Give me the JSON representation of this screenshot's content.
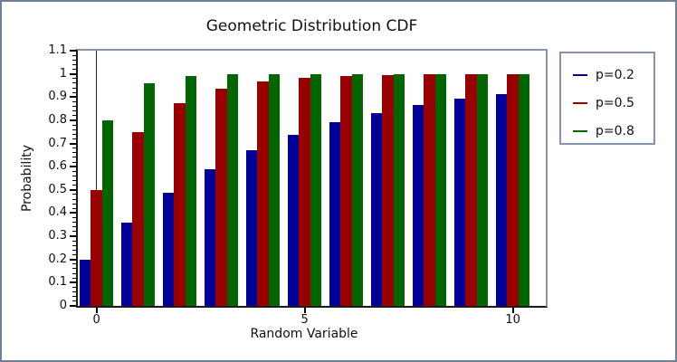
{
  "window": {
    "frame_color": "#6f8096",
    "background": "#ffffff"
  },
  "chart_data": {
    "type": "bar",
    "title": "Geometric Distribution CDF",
    "xlabel": "Random Variable",
    "ylabel": "Probability",
    "grid": false,
    "legend_position": "outside-upper-right",
    "ylim": [
      0,
      1.1
    ],
    "xlim": [
      -0.45,
      10.8
    ],
    "x": [
      0,
      1,
      2,
      3,
      4,
      5,
      6,
      7,
      8,
      9,
      10
    ],
    "series": [
      {
        "name": "p=0.2",
        "color": "#000099",
        "values": [
          0.2,
          0.36,
          0.488,
          0.5904,
          0.67232,
          0.737856,
          0.790285,
          0.832228,
          0.865782,
          0.892626,
          0.914101
        ]
      },
      {
        "name": "p=0.5",
        "color": "#990000",
        "values": [
          0.5,
          0.75,
          0.875,
          0.9375,
          0.96875,
          0.984375,
          0.992188,
          0.996094,
          0.998047,
          0.999023,
          0.999512
        ]
      },
      {
        "name": "p=0.8",
        "color": "#006600",
        "values": [
          0.8,
          0.96,
          0.992,
          0.9984,
          0.99968,
          0.999936,
          0.999987,
          0.999997,
          0.999999,
          1.0,
          1.0
        ]
      }
    ],
    "y_ticks": {
      "values": [
        0,
        0.1,
        0.2,
        0.3,
        0.4,
        0.5,
        0.6,
        0.7,
        0.8,
        0.9,
        1.0,
        1.1
      ],
      "labels": [
        "0",
        "0.1",
        "0.2",
        "0.3",
        "0.4",
        "0.5",
        "0.6",
        "0.7",
        "0.8",
        "0.9",
        "1",
        "1.1"
      ],
      "minor_step": 0.02
    },
    "x_ticks": {
      "values": [
        0,
        5,
        10
      ],
      "labels": [
        "0",
        "5",
        "10"
      ]
    },
    "zero_vline_x": 0
  }
}
